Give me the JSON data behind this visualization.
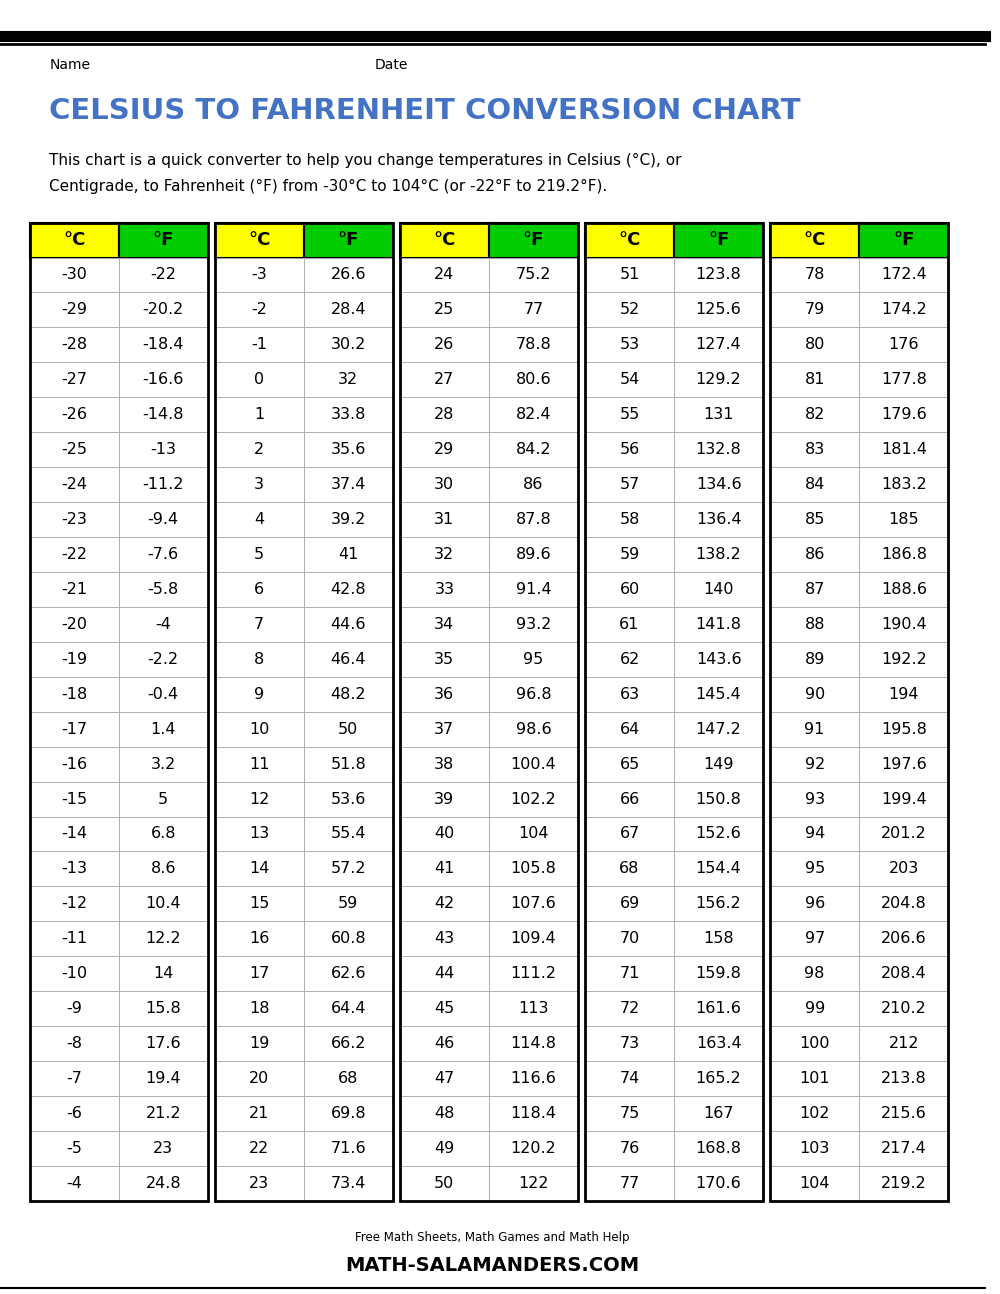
{
  "title": "CELSIUS TO FAHRENHEIT CONVERSION CHART",
  "title_color": "#4472C4",
  "subtitle_line1": "This chart is a quick converter to help you change temperatures in Celsius (°C), or",
  "subtitle_line2": "Centigrade, to Fahrenheit (°F) from -30°C to 104°C (or -22°F to 219.2°F).",
  "name_label": "Name",
  "date_label": "Date",
  "header_c": "°C",
  "header_f": "°F",
  "header_bg_c": "#FFFF00",
  "header_bg_f": "#00CC00",
  "col1_c": [
    -30,
    -29,
    -28,
    -27,
    -26,
    -25,
    -24,
    -23,
    -22,
    -21,
    -20,
    -19,
    -18,
    -17,
    -16,
    -15,
    -14,
    -13,
    -12,
    -11,
    -10,
    -9,
    -8,
    -7,
    -6,
    -5,
    -4
  ],
  "col1_f": [
    -22,
    -20.2,
    -18.4,
    -16.6,
    -14.8,
    -13,
    -11.2,
    -9.4,
    -7.6,
    -5.8,
    -4,
    -2.2,
    -0.4,
    1.4,
    3.2,
    5,
    6.8,
    8.6,
    10.4,
    12.2,
    14,
    15.8,
    17.6,
    19.4,
    21.2,
    23,
    24.8
  ],
  "col2_c": [
    -3,
    -2,
    -1,
    0,
    1,
    2,
    3,
    4,
    5,
    6,
    7,
    8,
    9,
    10,
    11,
    12,
    13,
    14,
    15,
    16,
    17,
    18,
    19,
    20,
    21,
    22,
    23
  ],
  "col2_f": [
    26.6,
    28.4,
    30.2,
    32,
    33.8,
    35.6,
    37.4,
    39.2,
    41,
    42.8,
    44.6,
    46.4,
    48.2,
    50,
    51.8,
    53.6,
    55.4,
    57.2,
    59,
    60.8,
    62.6,
    64.4,
    66.2,
    68,
    69.8,
    71.6,
    73.4
  ],
  "col3_c": [
    24,
    25,
    26,
    27,
    28,
    29,
    30,
    31,
    32,
    33,
    34,
    35,
    36,
    37,
    38,
    39,
    40,
    41,
    42,
    43,
    44,
    45,
    46,
    47,
    48,
    49,
    50
  ],
  "col3_f": [
    75.2,
    77,
    78.8,
    80.6,
    82.4,
    84.2,
    86,
    87.8,
    89.6,
    91.4,
    93.2,
    95,
    96.8,
    98.6,
    100.4,
    102.2,
    104,
    105.8,
    107.6,
    109.4,
    111.2,
    113,
    114.8,
    116.6,
    118.4,
    120.2,
    122
  ],
  "col4_c": [
    51,
    52,
    53,
    54,
    55,
    56,
    57,
    58,
    59,
    60,
    61,
    62,
    63,
    64,
    65,
    66,
    67,
    68,
    69,
    70,
    71,
    72,
    73,
    74,
    75,
    76,
    77
  ],
  "col4_f": [
    123.8,
    125.6,
    127.4,
    129.2,
    131,
    132.8,
    134.6,
    136.4,
    138.2,
    140,
    141.8,
    143.6,
    145.4,
    147.2,
    149,
    150.8,
    152.6,
    154.4,
    156.2,
    158,
    159.8,
    161.6,
    163.4,
    165.2,
    167,
    168.8,
    170.6
  ],
  "col5_c": [
    78,
    79,
    80,
    81,
    82,
    83,
    84,
    85,
    86,
    87,
    88,
    89,
    90,
    91,
    92,
    93,
    94,
    95,
    96,
    97,
    98,
    99,
    100,
    101,
    102,
    103,
    104
  ],
  "col5_f": [
    172.4,
    174.2,
    176,
    177.8,
    179.6,
    181.4,
    183.2,
    185,
    186.8,
    188.6,
    190.4,
    192.2,
    194,
    195.8,
    197.6,
    199.4,
    201.2,
    203,
    204.8,
    206.6,
    208.4,
    210.2,
    212,
    213.8,
    215.6,
    217.4,
    219.2
  ],
  "footer_text1": "Free Math Sheets, Math Games and Math Help",
  "footer_text2": "MATH-SALAMANDERS.COM",
  "bg_color": "#FFFFFF",
  "border_color": "#000000",
  "cell_border_color": "#999999",
  "table_border_color": "#000000"
}
